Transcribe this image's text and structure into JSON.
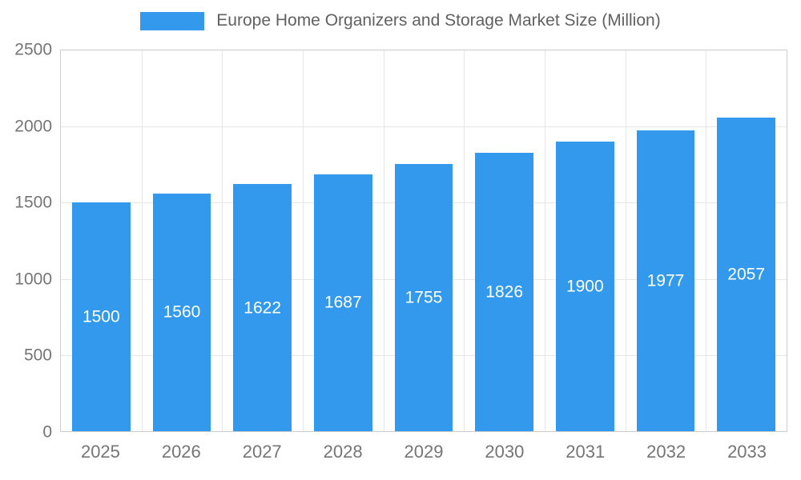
{
  "chart_data": {
    "type": "bar",
    "title": "Europe Home Organizers and Storage Market Size (Million)",
    "categories": [
      "2025",
      "2026",
      "2027",
      "2028",
      "2029",
      "2030",
      "2031",
      "2032",
      "2033"
    ],
    "values": [
      1500,
      1560,
      1622,
      1687,
      1755,
      1826,
      1900,
      1977,
      2057
    ],
    "series_name": "Europe Home Organizers and Storage Market Size (Million)",
    "xlabel": "",
    "ylabel": "",
    "ylim": [
      0,
      2500
    ],
    "yticks": [
      0,
      500,
      1000,
      1500,
      2000,
      2500
    ],
    "grid": true,
    "legend_position": "top",
    "value_labels": "inside-middle",
    "colors": {
      "bar": "#3399ec",
      "value_label_text": "#ffffff",
      "axis_text": "#757575",
      "title_text": "#616161",
      "gridline": "#e6e6e6",
      "plot_border": "#cccccc",
      "background": "#ffffff"
    }
  }
}
